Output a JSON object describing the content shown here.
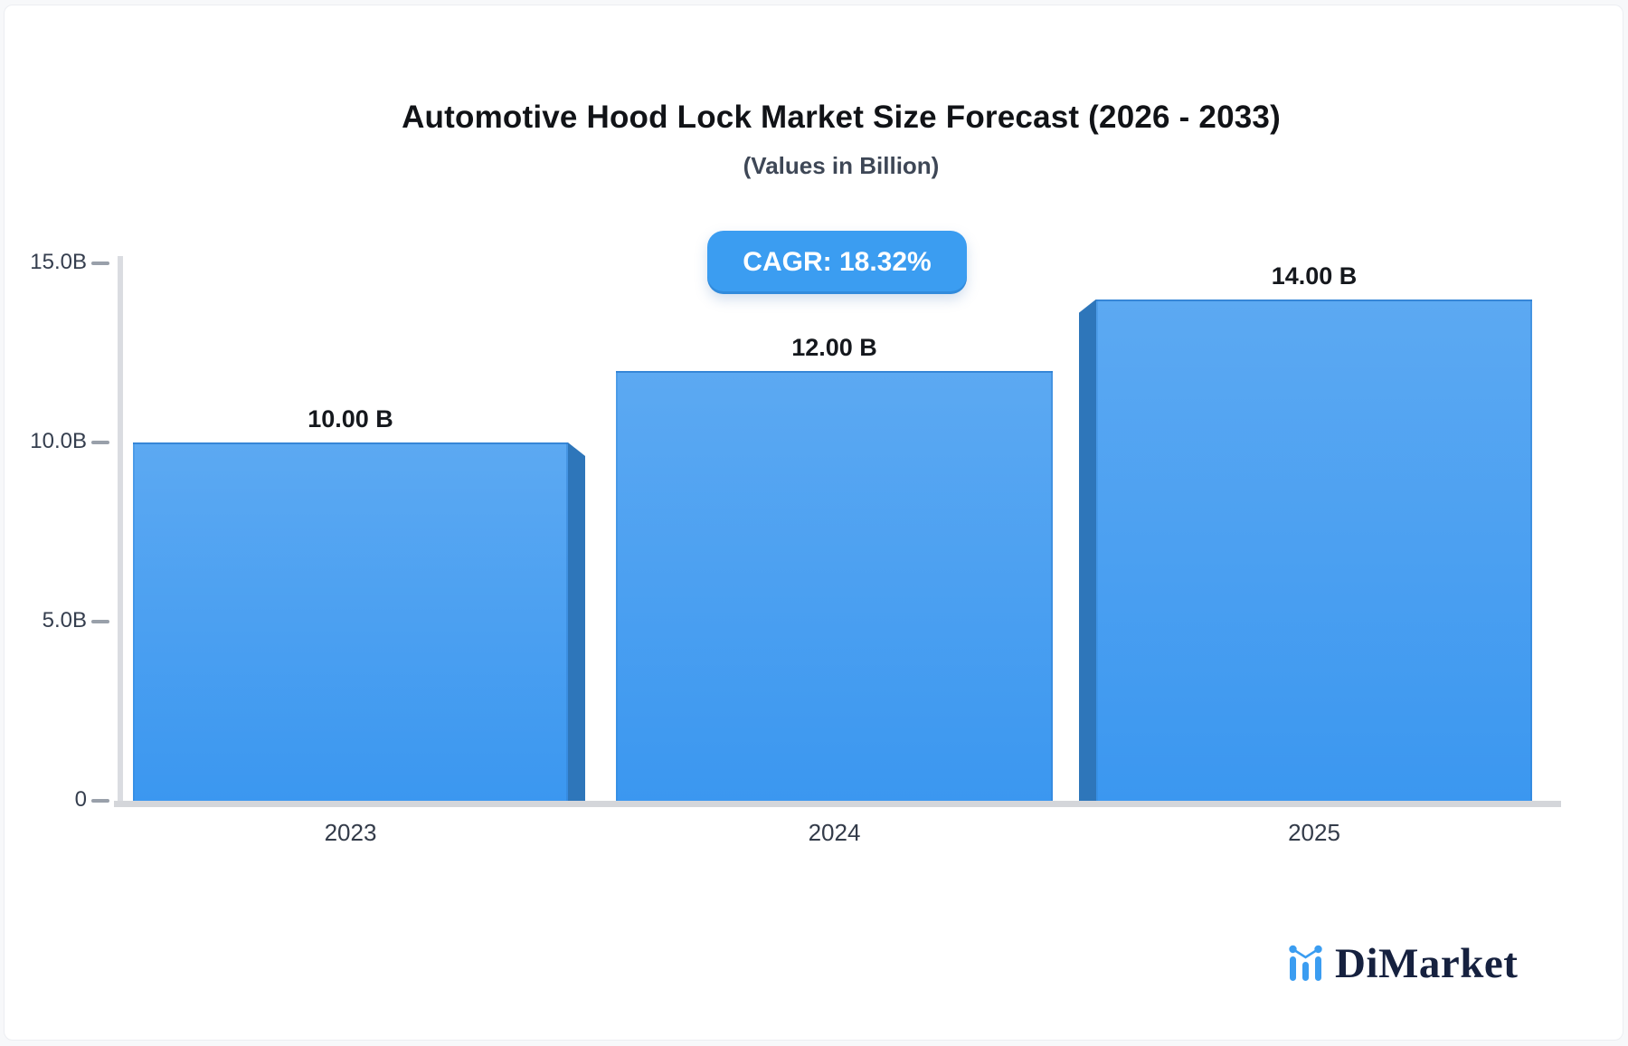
{
  "page": {
    "background": "#f7f8fa",
    "card_background": "#ffffff"
  },
  "chart_data": {
    "type": "bar",
    "title": "Automotive Hood Lock Market Size Forecast (2026 - 2033)",
    "subtitle": "(Values in Billion)",
    "badge_label": "CAGR: 18.32%",
    "cagr_percent": 18.32,
    "categories": [
      "2023",
      "2024",
      "2025"
    ],
    "values": [
      10,
      12,
      14
    ],
    "value_labels": [
      "10.00 B",
      "12.00 B",
      "14.00 B"
    ],
    "unit": "Billion",
    "ylim": [
      0,
      15
    ],
    "yticks": [
      {
        "label": "15.0B",
        "value": 15
      },
      {
        "label": "10.0B",
        "value": 10
      },
      {
        "label": "5.0B",
        "value": 5
      },
      {
        "label": "0",
        "value": 0
      }
    ],
    "grid": false,
    "legend": false,
    "colors": {
      "bar_top": "#5ca9f2",
      "bar_bottom": "#3b97f0",
      "bar_side": "#2e76ba",
      "bar_edge": "#2f80d2",
      "badge_bg": "#3b9df1",
      "axis_line": "#d9dbe0"
    }
  },
  "branding": {
    "logo_text": "DiMarket",
    "logo_icon": "bar-chart-trend-icon",
    "logo_icon_color": "#3b9df1",
    "logo_text_color": "#16213f"
  }
}
